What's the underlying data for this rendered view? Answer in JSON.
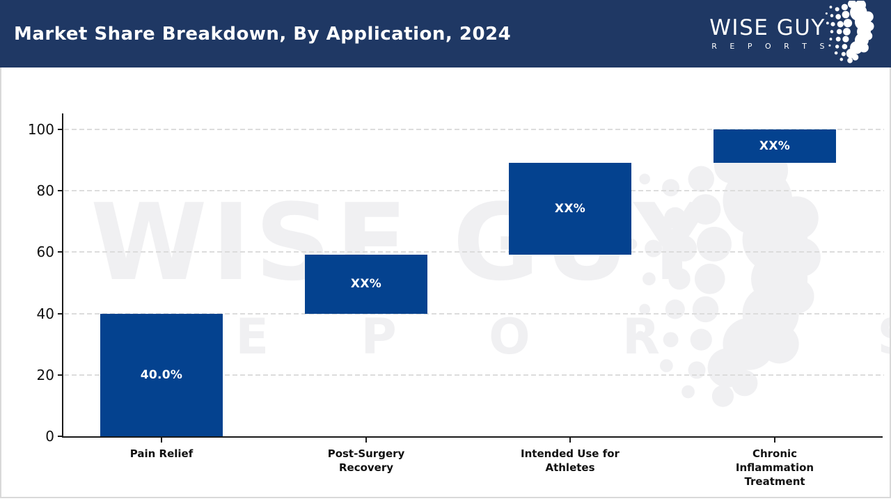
{
  "header": {
    "title": "Market Share Breakdown, By Application, 2024",
    "logo": {
      "line1": "WISE GUY",
      "line2": "R E P O R T S",
      "icon": "face-dots-icon"
    }
  },
  "watermark": {
    "line1": "WISE GUY",
    "line2": "R E P O R T S"
  },
  "colors": {
    "header_bg": "#1f3864",
    "bar": "#04428f",
    "watermark": "#f0f0f2",
    "grid": "#dcdcdc",
    "axis": "#1a1a1a",
    "text": "#111111"
  },
  "chart_data": {
    "type": "bar",
    "subtype": "waterfall",
    "title": "Market Share Breakdown, By Application, 2024",
    "categories": [
      "Pain Relief",
      "Post-Surgery Recovery",
      "Intended Use for Athletes",
      "Chronic Inflammation Treatment"
    ],
    "category_label_lines": [
      [
        "Pain Relief"
      ],
      [
        "Post-Surgery",
        "Recovery"
      ],
      [
        "Intended Use for",
        "Athletes"
      ],
      [
        "Chronic",
        "Inflammation",
        "Treatment"
      ]
    ],
    "segments": [
      {
        "category": "Pain Relief",
        "start": 0,
        "end": 40,
        "label": "40.0%"
      },
      {
        "category": "Post-Surgery Recovery",
        "start": 40,
        "end": 59.2,
        "label": "XX%"
      },
      {
        "category": "Intended Use for Athletes",
        "start": 59.2,
        "end": 89.2,
        "label": "XX%"
      },
      {
        "category": "Chronic Inflammation Treatment",
        "start": 89.2,
        "end": 100,
        "label": "XX%"
      }
    ],
    "value_labels": [
      "40.0%",
      "XX%",
      "XX%",
      "XX%"
    ],
    "ylim": [
      0,
      100
    ],
    "yticks": [
      0,
      20,
      40,
      60,
      80,
      100
    ],
    "xlabel": "",
    "ylabel": "",
    "grid": "horizontal-dashed",
    "legend": "none"
  }
}
